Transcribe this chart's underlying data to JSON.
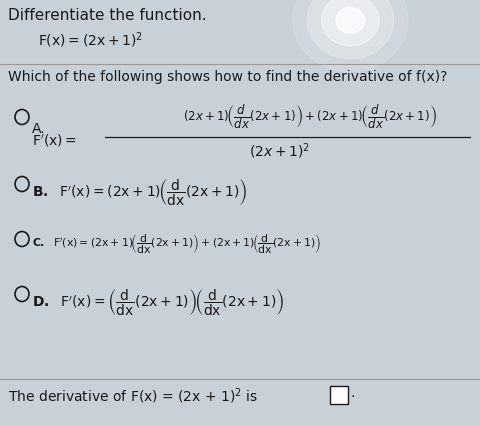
{
  "title": "Differentiate the function.",
  "func_line": "F(x) = (2x + 1)²",
  "question": "Which of the following shows how to find the derivative of f(x)?",
  "bg_color": "#c8d0d8",
  "text_color": "#1a1a1a",
  "line_color": "#999999",
  "fig_width": 4.8,
  "fig_height": 4.27,
  "dpi": 100,
  "title_fs": 11,
  "body_fs": 10,
  "math_fs": 9.5,
  "small_fs": 8.5
}
